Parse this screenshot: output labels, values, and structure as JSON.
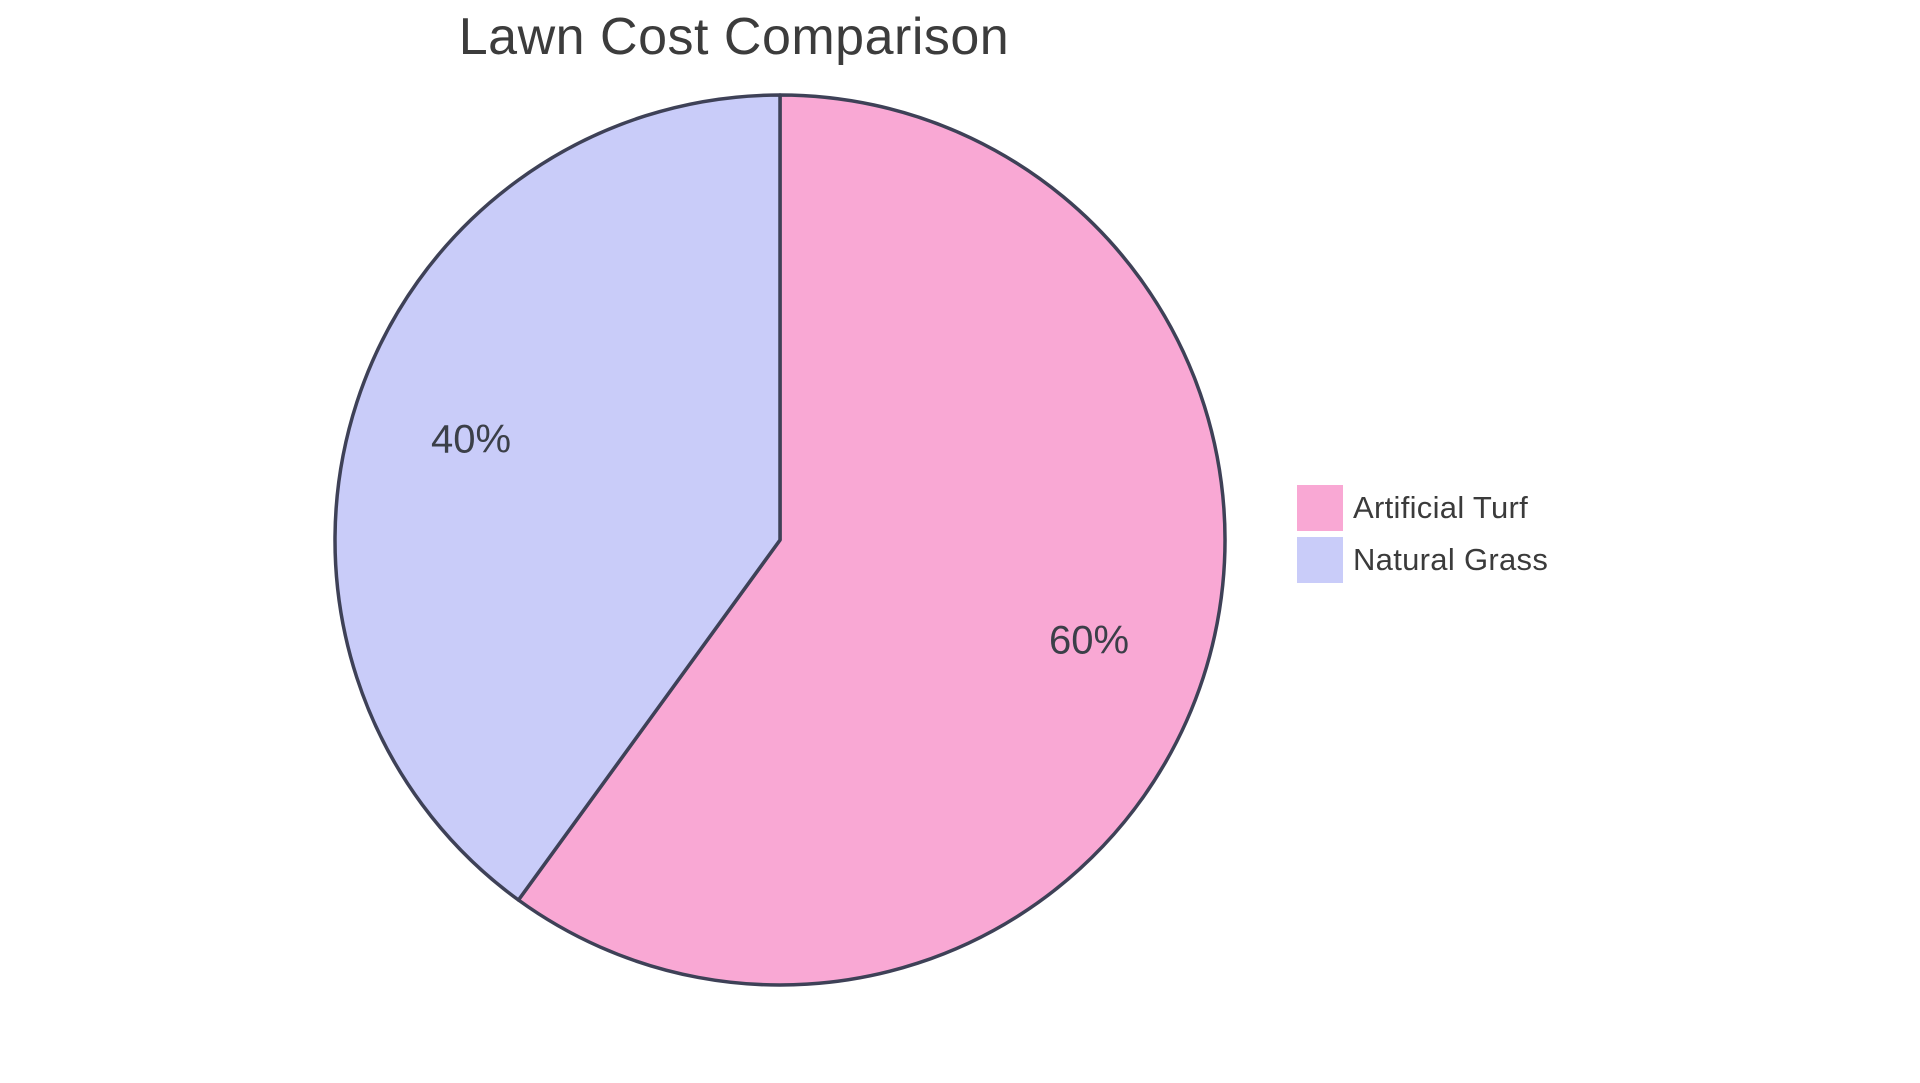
{
  "chart_data": {
    "type": "pie",
    "title": "Lawn Cost Comparison",
    "categories": [
      "Artificial Turf",
      "Natural Grass"
    ],
    "values": [
      60,
      40
    ],
    "value_labels": [
      "60%",
      "40%"
    ],
    "colors": [
      "#F9A8D4",
      "#C9CCF9"
    ],
    "slice_border_color": "#3E4157",
    "percent_label_color": "#3B3F48",
    "title_color": "#3C3C3C",
    "legend_text_color": "#3B3B3B",
    "legend_position": "right",
    "start_angle_deg": 0,
    "direction": "clockwise",
    "background": "#FFFFFF"
  }
}
